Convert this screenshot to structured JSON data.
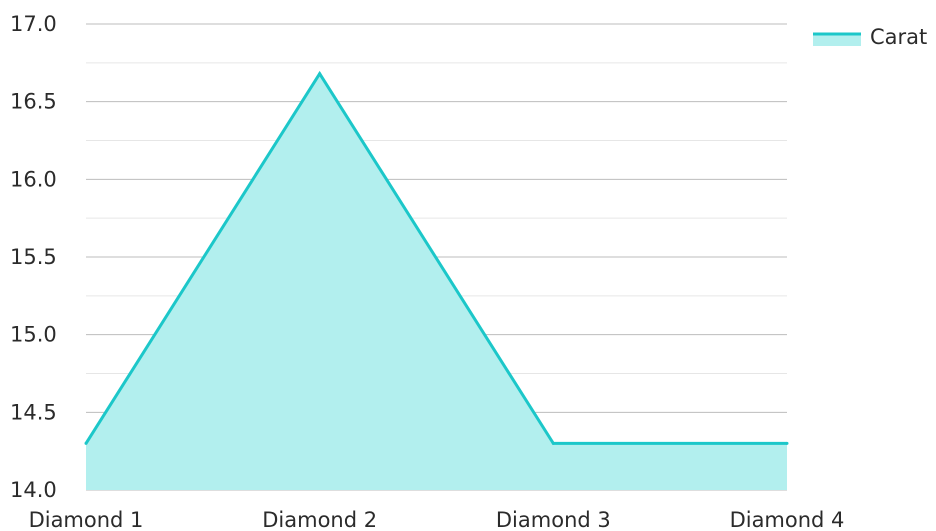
{
  "chart_data": {
    "type": "area",
    "title": "",
    "xlabel": "",
    "ylabel": "",
    "categories": [
      "Diamond 1",
      "Diamond 2",
      "Diamond 3",
      "Diamond 4"
    ],
    "series": [
      {
        "name": "Carat",
        "values": [
          14.3,
          16.68,
          14.3,
          14.3
        ]
      }
    ],
    "ylim": [
      14.0,
      17.0
    ],
    "yticks": [
      "14.0",
      "14.5",
      "15.0",
      "15.5",
      "16.0",
      "16.5",
      "17.0"
    ],
    "grid": true,
    "legend_position": "top-right",
    "colors": {
      "line": "#1cc7c9",
      "fill": "#b2efee",
      "grid_major": "#bdbdbd",
      "grid_minor": "#e6e6e6"
    }
  }
}
